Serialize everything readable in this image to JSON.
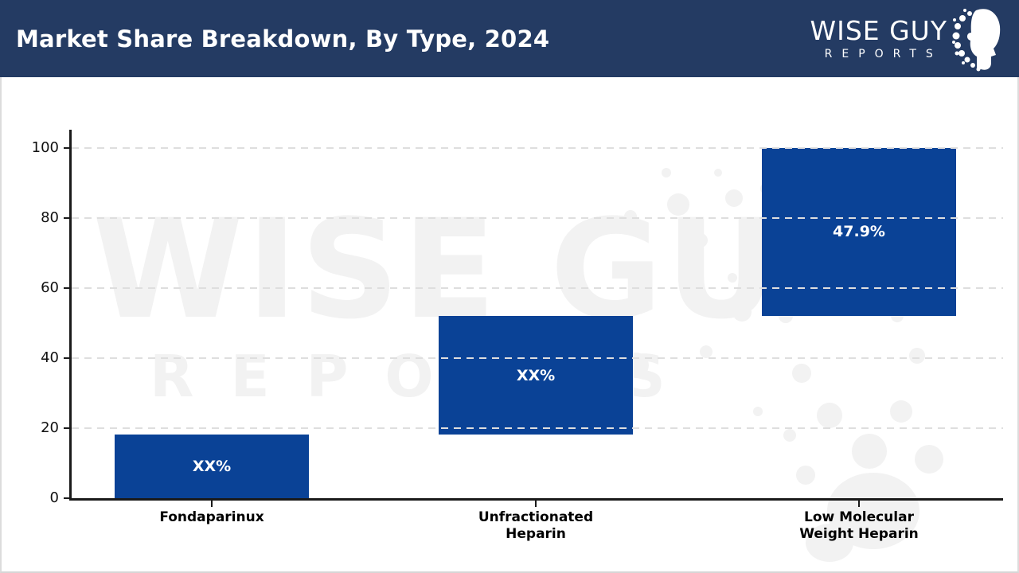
{
  "header": {
    "title": "Market Share Breakdown, By Type, 2024",
    "brand": {
      "name": "WISE GUY",
      "subtitle": "REPORTS"
    }
  },
  "watermark": {
    "line1": "WISE GUY",
    "line2": "REPORTS"
  },
  "chart_data": {
    "type": "bar",
    "subtype": "waterfall",
    "title": "Market Share Breakdown, By Type, 2024",
    "categories": [
      "Fondaparinux",
      "Unfractionated\nHeparin",
      "Low Molecular\nWeight Heparin"
    ],
    "values": [
      18.1,
      34.0,
      47.9
    ],
    "cumulative_start": [
      0,
      18.1,
      52.1
    ],
    "cumulative_end": [
      18.1,
      52.1,
      100
    ],
    "value_labels": [
      "XX%",
      "XX%",
      "47.9%"
    ],
    "xlabel": "",
    "ylabel": "",
    "ylim": [
      0,
      100
    ],
    "yticks": [
      0,
      20,
      40,
      60,
      80,
      100
    ],
    "grid": "horizontal-dashed",
    "legend": "none",
    "colors": {
      "bar": "#0a4296",
      "value_label": "#ffffff",
      "grid": "#dedede",
      "axis": "#1a1a1a",
      "tick_label": "#111111",
      "header_bg": "#243b63",
      "title_text": "#ffffff",
      "watermark": "#f2f2f2"
    }
  }
}
